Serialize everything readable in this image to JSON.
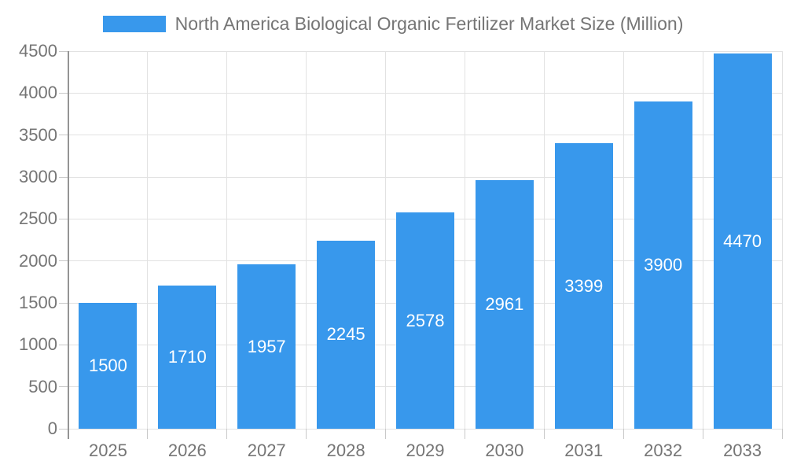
{
  "legend": {
    "label": "North America Biological Organic Fertilizer Market Size (Million)"
  },
  "chart_data": {
    "type": "bar",
    "title": "North America Biological Organic Fertilizer Market Size (Million)",
    "categories": [
      "2025",
      "2026",
      "2027",
      "2028",
      "2029",
      "2030",
      "2031",
      "2032",
      "2033"
    ],
    "values": [
      1500,
      1710,
      1957,
      2245,
      2578,
      2961,
      3399,
      3900,
      4470
    ],
    "xlabel": "",
    "ylabel": "",
    "ylim": [
      0,
      4500
    ],
    "ytick_step": 500,
    "ytick_labels": [
      "0",
      "500",
      "1000",
      "1500",
      "2000",
      "2500",
      "3000",
      "3500",
      "4000",
      "4500"
    ],
    "grid": true,
    "legend_position": "top",
    "value_labels": "inside-center"
  },
  "colors": {
    "bar": "#3898EC",
    "grid": "#e2e2e2",
    "tick": "#c9c9c9",
    "axis": "#949494",
    "text": "#757575",
    "value_label": "#ffffff",
    "background": "#ffffff"
  }
}
